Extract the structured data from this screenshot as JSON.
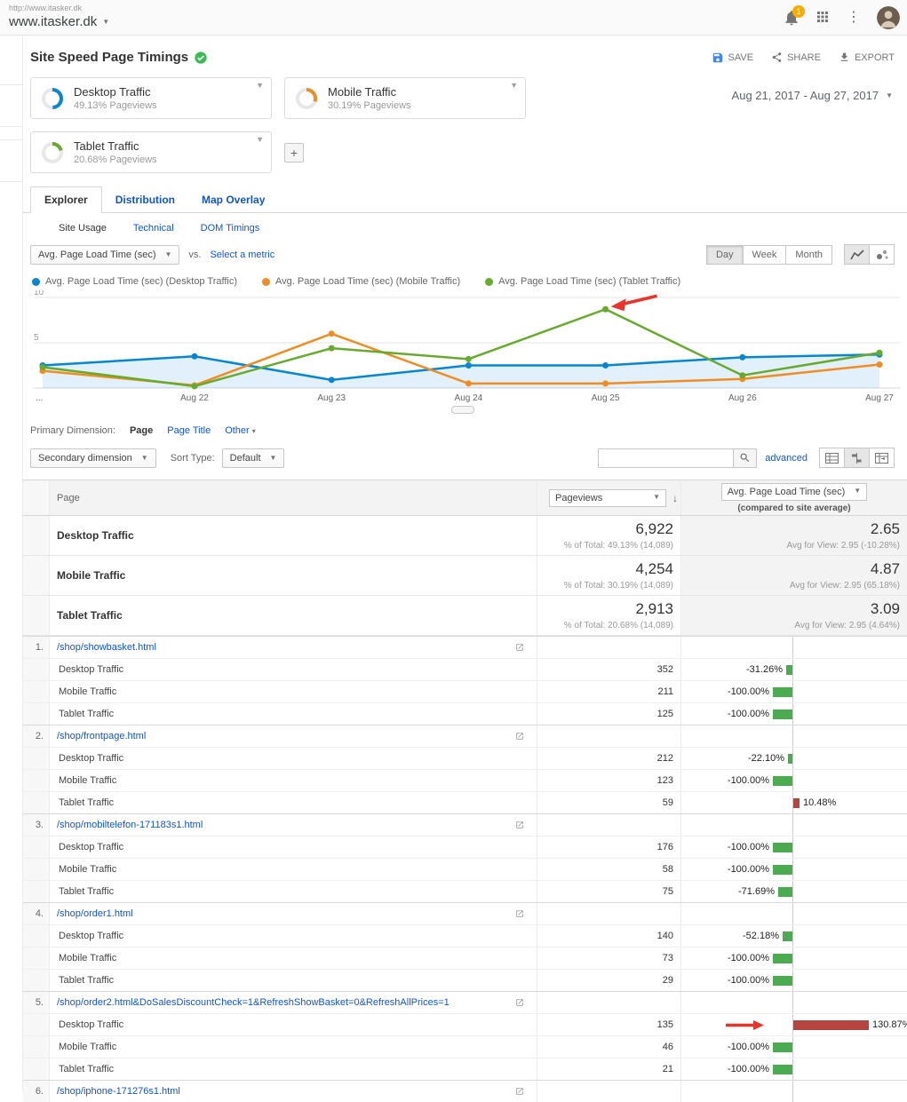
{
  "topbar": {
    "url": "http://www.itasker.dk",
    "site": "www.itasker.dk",
    "notification_count": "1"
  },
  "report": {
    "title": "Site Speed Page Timings",
    "save_label": "SAVE",
    "share_label": "SHARE",
    "export_label": "EXPORT",
    "date_range": "Aug 21, 2017 - Aug 27, 2017"
  },
  "segments": [
    {
      "name": "Desktop Traffic",
      "detail": "49.13% Pageviews",
      "pct": 49.13,
      "color": "#0586d2"
    },
    {
      "name": "Mobile Traffic",
      "detail": "30.19% Pageviews",
      "pct": 30.19,
      "color": "#ef8d22"
    },
    {
      "name": "Tablet Traffic",
      "detail": "20.68% Pageviews",
      "pct": 20.68,
      "color": "#68aa2e"
    }
  ],
  "tabs": {
    "explorer": "Explorer",
    "distribution": "Distribution",
    "map_overlay": "Map Overlay"
  },
  "subtabs": {
    "site_usage": "Site Usage",
    "technical": "Technical",
    "dom_timings": "DOM Timings"
  },
  "metric_bar": {
    "metric": "Avg. Page Load Time (sec)",
    "vs": "vs.",
    "select_metric": "Select a metric",
    "day": "Day",
    "week": "Week",
    "month": "Month"
  },
  "chart_data": {
    "type": "line",
    "x": [
      "...",
      "Aug 22",
      "Aug 23",
      "Aug 24",
      "Aug 25",
      "Aug 26",
      "Aug 27"
    ],
    "ylim": [
      0,
      10
    ],
    "yticks": [
      5,
      10
    ],
    "series": [
      {
        "name": "Avg. Page Load Time (sec) (Desktop Traffic)",
        "color": "#0586d2",
        "area": true,
        "values": [
          2.5,
          3.5,
          0.9,
          2.5,
          2.5,
          3.4,
          3.7
        ]
      },
      {
        "name": "Avg. Page Load Time (sec) (Mobile Traffic)",
        "color": "#ef8d22",
        "values": [
          1.9,
          0.3,
          6.0,
          0.5,
          0.5,
          1.0,
          2.6
        ]
      },
      {
        "name": "Avg. Page Load Time (sec) (Tablet Traffic)",
        "color": "#68aa2e",
        "values": [
          2.3,
          0.2,
          4.4,
          3.2,
          8.7,
          1.4,
          3.9
        ]
      }
    ],
    "annotation": {
      "type": "red-arrow",
      "target": "Tablet Traffic peak on Aug 25"
    }
  },
  "primary_dimension": {
    "label": "Primary Dimension:",
    "page": "Page",
    "page_title": "Page Title",
    "other": "Other"
  },
  "controls": {
    "secondary_dimension": "Secondary dimension",
    "sort_type_label": "Sort Type:",
    "sort_type": "Default",
    "advanced": "advanced",
    "search_value": ""
  },
  "table": {
    "columns": {
      "page": "Page",
      "pageviews": "Pageviews",
      "metric": "Avg. Page Load Time (sec)",
      "metric_note": "(compared to site average)"
    },
    "bar_colors": {
      "negative": "#4cab51",
      "positive": "#b5453e"
    },
    "summary": [
      {
        "name": "Desktop Traffic",
        "pageviews": "6,922",
        "pageviews_sub": "% of Total: 49.13% (14,089)",
        "metric": "2.65",
        "metric_sub": "Avg for View: 2.95 (-10.28%)"
      },
      {
        "name": "Mobile Traffic",
        "pageviews": "4,254",
        "pageviews_sub": "% of Total: 30.19% (14,089)",
        "metric": "4.87",
        "metric_sub": "Avg for View: 2.95 (65.18%)"
      },
      {
        "name": "Tablet Traffic",
        "pageviews": "2,913",
        "pageviews_sub": "% of Total: 20.68% (14,089)",
        "metric": "3.09",
        "metric_sub": "Avg for View: 2.95 (4.64%)"
      }
    ],
    "rows": [
      {
        "index": "1.",
        "page": "/shop/showbasket.html",
        "segments": [
          {
            "name": "Desktop Traffic",
            "pageviews": "352",
            "delta": -31.26,
            "delta_label": "-31.26%"
          },
          {
            "name": "Mobile Traffic",
            "pageviews": "211",
            "delta": -100.0,
            "delta_label": "-100.00%"
          },
          {
            "name": "Tablet Traffic",
            "pageviews": "125",
            "delta": -100.0,
            "delta_label": "-100.00%"
          }
        ]
      },
      {
        "index": "2.",
        "page": "/shop/frontpage.html",
        "segments": [
          {
            "name": "Desktop Traffic",
            "pageviews": "212",
            "delta": -22.1,
            "delta_label": "-22.10%"
          },
          {
            "name": "Mobile Traffic",
            "pageviews": "123",
            "delta": -100.0,
            "delta_label": "-100.00%"
          },
          {
            "name": "Tablet Traffic",
            "pageviews": "59",
            "delta": 10.48,
            "delta_label": "10.48%"
          }
        ]
      },
      {
        "index": "3.",
        "page": "/shop/mobiltelefon-171183s1.html",
        "segments": [
          {
            "name": "Desktop Traffic",
            "pageviews": "176",
            "delta": -100.0,
            "delta_label": "-100.00%"
          },
          {
            "name": "Mobile Traffic",
            "pageviews": "58",
            "delta": -100.0,
            "delta_label": "-100.00%"
          },
          {
            "name": "Tablet Traffic",
            "pageviews": "75",
            "delta": -71.69,
            "delta_label": "-71.69%"
          }
        ]
      },
      {
        "index": "4.",
        "page": "/shop/order1.html",
        "segments": [
          {
            "name": "Desktop Traffic",
            "pageviews": "140",
            "delta": -52.18,
            "delta_label": "-52.18%"
          },
          {
            "name": "Mobile Traffic",
            "pageviews": "73",
            "delta": -100.0,
            "delta_label": "-100.00%"
          },
          {
            "name": "Tablet Traffic",
            "pageviews": "29",
            "delta": -100.0,
            "delta_label": "-100.00%"
          }
        ]
      },
      {
        "index": "5.",
        "page": "/shop/order2.html&DoSalesDiscountCheck=1&RefreshShowBasket=0&RefreshAllPrices=1",
        "segments": [
          {
            "name": "Desktop Traffic",
            "pageviews": "135",
            "delta": 130.87,
            "delta_label": "130.87%",
            "arrow": true
          },
          {
            "name": "Mobile Traffic",
            "pageviews": "46",
            "delta": -100.0,
            "delta_label": "-100.00%"
          },
          {
            "name": "Tablet Traffic",
            "pageviews": "21",
            "delta": -100.0,
            "delta_label": "-100.00%"
          }
        ]
      },
      {
        "index": "6.",
        "page": "/shop/iphone-171276s1.html",
        "segments": []
      }
    ]
  }
}
